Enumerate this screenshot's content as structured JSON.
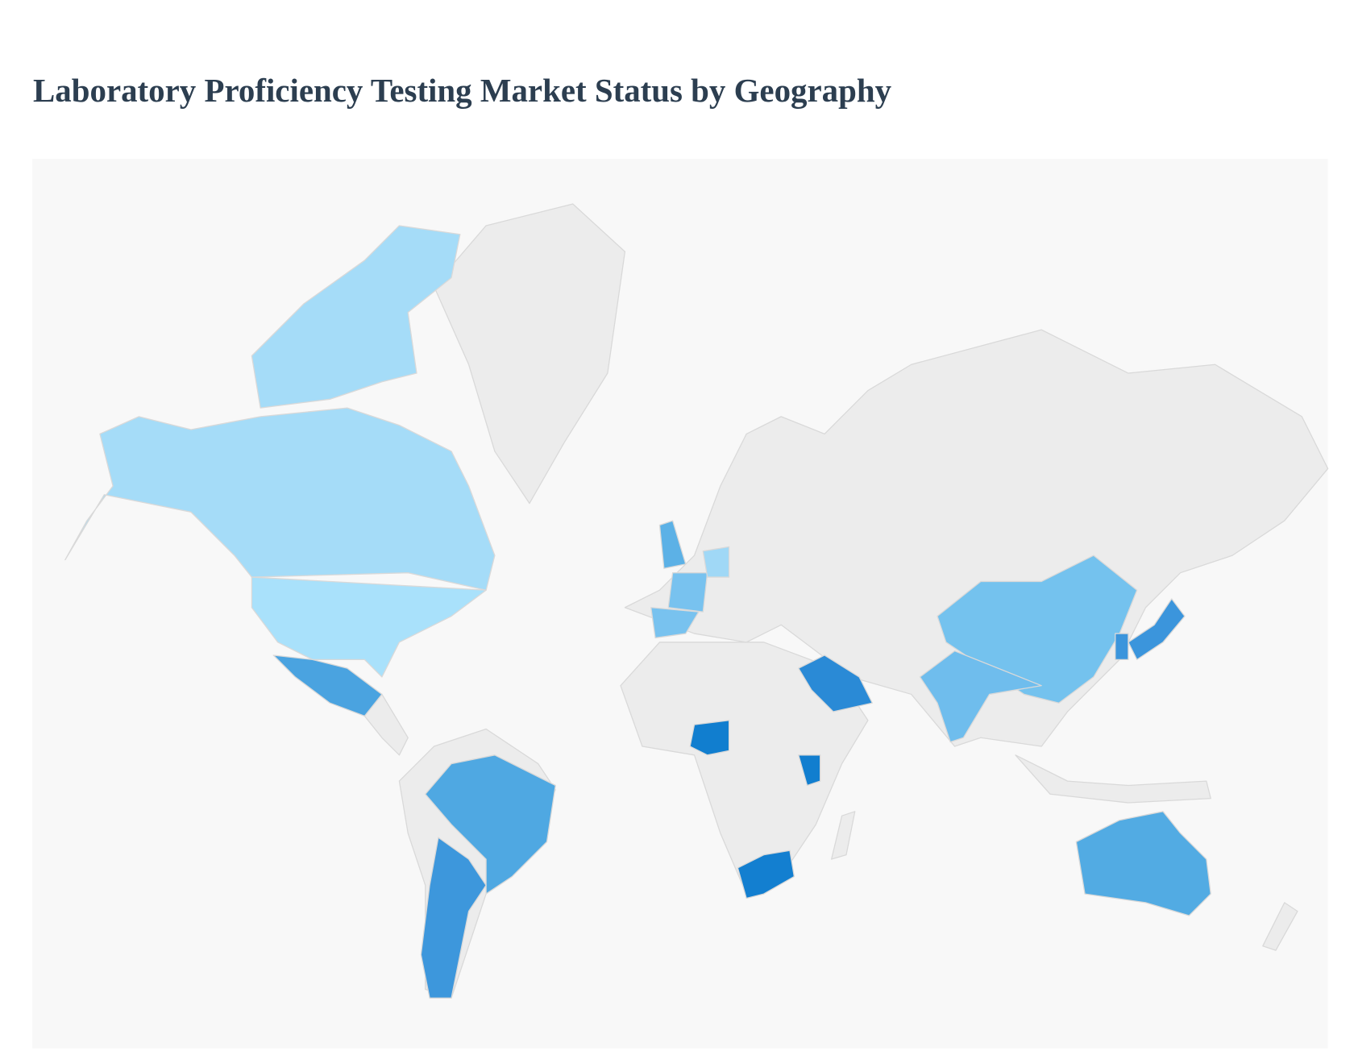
{
  "header": {
    "title": "Laboratory Proficiency Testing Market Status by Geography"
  }
}
